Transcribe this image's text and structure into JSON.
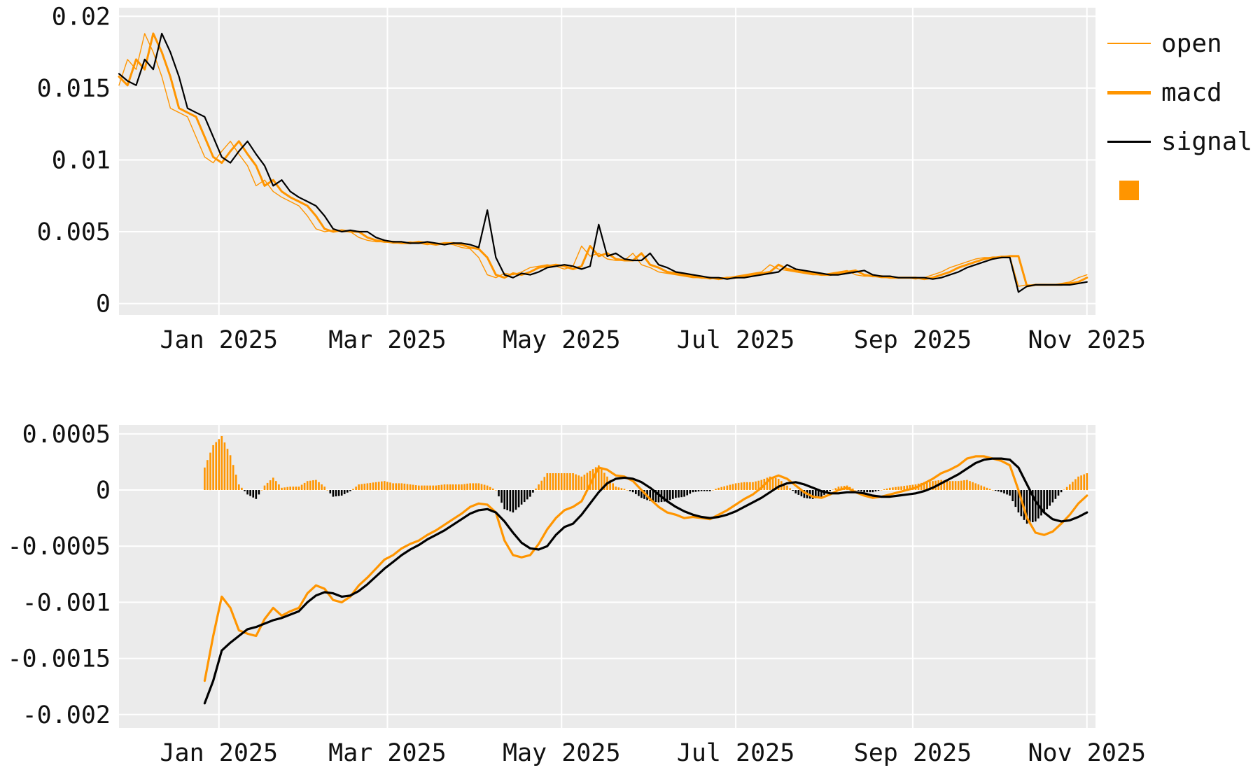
{
  "style": {
    "figure_bg": "#ffffff",
    "axes_bg": "#ebebeb",
    "grid_color": "#ffffff",
    "tick_label_color": "#111111",
    "accent_orange": "#ff9500",
    "line_black": "#000000"
  },
  "legend": {
    "entries": [
      {
        "label": "open",
        "type": "line",
        "color": "#ff9500",
        "weight": "thin"
      },
      {
        "label": "macd",
        "type": "line",
        "color": "#ff9500",
        "weight": "thick"
      },
      {
        "label": "signal",
        "type": "line",
        "color": "#000000",
        "weight": "medium"
      },
      {
        "label": "",
        "type": "square",
        "color": "#ff9500"
      }
    ]
  },
  "chart_data": [
    {
      "type": "line",
      "title": "",
      "xlabel": "",
      "ylabel": "",
      "grid": true,
      "x_domain": [
        0,
        342
      ],
      "step_days": 3,
      "x_ticks": [
        35,
        94,
        155,
        216,
        278,
        339
      ],
      "x_tick_labels": [
        "Jan 2025",
        "Mar 2025",
        "May 2025",
        "Jul 2025",
        "Sep 2025",
        "Nov 2025"
      ],
      "ylim": [
        -0.0008,
        0.0206
      ],
      "y_ticks": [
        0,
        0.005,
        0.01,
        0.015,
        0.02
      ],
      "y_tick_labels": [
        "0",
        "0.005",
        "0.01",
        "0.015",
        "0.02"
      ],
      "series": [
        {
          "name": "open",
          "color": "#ff9500",
          "width": 1.4,
          "values": [
            0.0152,
            0.017,
            0.0163,
            0.0188,
            0.0175,
            0.0158,
            0.0136,
            0.0133,
            0.013,
            0.0116,
            0.0102,
            0.0098,
            0.0106,
            0.0113,
            0.0104,
            0.0096,
            0.0082,
            0.0086,
            0.0078,
            0.0074,
            0.0071,
            0.0068,
            0.0061,
            0.0052,
            0.005,
            0.0051,
            0.005,
            0.005,
            0.0046,
            0.0044,
            0.0043,
            0.0043,
            0.0042,
            0.0042,
            0.0043,
            0.0042,
            0.0041,
            0.0042,
            0.0042,
            0.0041,
            0.0039,
            0.0038,
            0.0032,
            0.002,
            0.0018,
            0.0021,
            0.002,
            0.0022,
            0.0025,
            0.0026,
            0.0027,
            0.0026,
            0.0024,
            0.0026,
            0.004,
            0.0033,
            0.0035,
            0.0031,
            0.003,
            0.003,
            0.0035,
            0.0027,
            0.0025,
            0.0022,
            0.0021,
            0.002,
            0.0019,
            0.0018,
            0.0018,
            0.0017,
            0.0018,
            0.0018,
            0.0019,
            0.002,
            0.0021,
            0.0022,
            0.0027,
            0.0024,
            0.0023,
            0.0022,
            0.0021,
            0.002,
            0.002,
            0.0021,
            0.0022,
            0.0023,
            0.002,
            0.0019,
            0.0019,
            0.0018,
            0.0018,
            0.0018,
            0.0018,
            0.0017,
            0.0018,
            0.002,
            0.0022,
            0.0025,
            0.0027,
            0.0029,
            0.0031,
            0.0032,
            0.0032,
            0.0033,
            0.0033,
            0.0012,
            0.0013,
            0.0013,
            0.0013,
            0.0013,
            0.0014,
            0.0015,
            0.0018,
            0.002
          ]
        },
        {
          "name": "macd",
          "color": "#ff9500",
          "width": 3.0,
          "values": [
            0.0158,
            0.0152,
            0.017,
            0.0163,
            0.0188,
            0.0175,
            0.0158,
            0.0136,
            0.0133,
            0.013,
            0.0116,
            0.0102,
            0.0098,
            0.0106,
            0.0113,
            0.0104,
            0.0096,
            0.0082,
            0.0086,
            0.0078,
            0.0074,
            0.0071,
            0.0068,
            0.0061,
            0.0052,
            0.005,
            0.0051,
            0.005,
            0.005,
            0.0046,
            0.0044,
            0.0043,
            0.0043,
            0.0042,
            0.0042,
            0.0043,
            0.0042,
            0.0041,
            0.0042,
            0.0042,
            0.0041,
            0.0039,
            0.0038,
            0.0032,
            0.002,
            0.0018,
            0.0021,
            0.002,
            0.0022,
            0.0025,
            0.0026,
            0.0027,
            0.0026,
            0.0024,
            0.0026,
            0.004,
            0.0033,
            0.0035,
            0.0031,
            0.003,
            0.003,
            0.0035,
            0.0027,
            0.0025,
            0.0022,
            0.0021,
            0.002,
            0.0019,
            0.0018,
            0.0018,
            0.0017,
            0.0018,
            0.0018,
            0.0019,
            0.002,
            0.0021,
            0.0022,
            0.0027,
            0.0024,
            0.0023,
            0.0022,
            0.0021,
            0.002,
            0.002,
            0.0021,
            0.0022,
            0.0023,
            0.002,
            0.0019,
            0.0019,
            0.0018,
            0.0018,
            0.0018,
            0.0018,
            0.0017,
            0.0018,
            0.002,
            0.0022,
            0.0025,
            0.0027,
            0.0029,
            0.0031,
            0.0032,
            0.0032,
            0.0033,
            0.0033,
            0.0012,
            0.0013,
            0.0013,
            0.0013,
            0.0013,
            0.0014,
            0.0015,
            0.0018
          ]
        },
        {
          "name": "signal",
          "color": "#000000",
          "width": 2.2,
          "values": [
            0.016,
            0.0155,
            0.0152,
            0.017,
            0.0163,
            0.0188,
            0.0175,
            0.0158,
            0.0136,
            0.0133,
            0.013,
            0.0116,
            0.0102,
            0.0098,
            0.0106,
            0.0113,
            0.0104,
            0.0096,
            0.0082,
            0.0086,
            0.0078,
            0.0074,
            0.0071,
            0.0068,
            0.0061,
            0.0052,
            0.005,
            0.0051,
            0.005,
            0.005,
            0.0046,
            0.0044,
            0.0043,
            0.0043,
            0.0042,
            0.0042,
            0.0043,
            0.0042,
            0.0041,
            0.0042,
            0.0042,
            0.0041,
            0.0039,
            0.0065,
            0.0032,
            0.002,
            0.0018,
            0.0021,
            0.002,
            0.0022,
            0.0025,
            0.0026,
            0.0027,
            0.0026,
            0.0024,
            0.0026,
            0.0055,
            0.0033,
            0.0035,
            0.0031,
            0.003,
            0.003,
            0.0035,
            0.0027,
            0.0025,
            0.0022,
            0.0021,
            0.002,
            0.0019,
            0.0018,
            0.0018,
            0.0017,
            0.0018,
            0.0018,
            0.0019,
            0.002,
            0.0021,
            0.0022,
            0.0027,
            0.0024,
            0.0023,
            0.0022,
            0.0021,
            0.002,
            0.002,
            0.0021,
            0.0022,
            0.0023,
            0.002,
            0.0019,
            0.0019,
            0.0018,
            0.0018,
            0.0018,
            0.0018,
            0.0017,
            0.0018,
            0.002,
            0.0022,
            0.0025,
            0.0027,
            0.0029,
            0.0031,
            0.0032,
            0.0032,
            0.0008,
            0.0012,
            0.0013,
            0.0013,
            0.0013,
            0.0013,
            0.0013,
            0.0014,
            0.0015
          ]
        }
      ]
    },
    {
      "type": "line+bar",
      "title": "",
      "xlabel": "",
      "ylabel": "",
      "grid": true,
      "x_domain": [
        0,
        342
      ],
      "step_days": 3,
      "x_ticks": [
        35,
        94,
        155,
        216,
        278,
        339
      ],
      "x_tick_labels": [
        "Jan 2025",
        "Mar 2025",
        "May 2025",
        "Jul 2025",
        "Sep 2025",
        "Nov 2025"
      ],
      "ylim": [
        -0.00212,
        0.00058
      ],
      "y_ticks": [
        0.0005,
        0,
        -0.0005,
        -0.001,
        -0.0015,
        -0.002
      ],
      "y_tick_labels": [
        "0.0005",
        "0",
        "-0.0005",
        "-0.001",
        "-0.0015",
        "-0.002"
      ],
      "histogram": {
        "derived_from": "macd - signal",
        "bar_resolution_days": 1,
        "positive_color": "#ff9500",
        "negative_color": "#000000"
      },
      "series": [
        {
          "name": "macd",
          "color": "#ff9500",
          "width": 3.2,
          "values": [
            null,
            null,
            null,
            null,
            null,
            null,
            null,
            null,
            null,
            null,
            -0.0017,
            -0.0013,
            -0.00095,
            -0.00105,
            -0.00125,
            -0.00128,
            -0.0013,
            -0.00115,
            -0.00105,
            -0.00112,
            -0.00108,
            -0.00105,
            -0.00092,
            -0.00085,
            -0.00088,
            -0.00098,
            -0.001,
            -0.00095,
            -0.00085,
            -0.00078,
            -0.0007,
            -0.00062,
            -0.00058,
            -0.00052,
            -0.00048,
            -0.00045,
            -0.0004,
            -0.00036,
            -0.00031,
            -0.00026,
            -0.00021,
            -0.00015,
            -0.00012,
            -0.00013,
            -0.0002,
            -0.00045,
            -0.00058,
            -0.0006,
            -0.00058,
            -0.00048,
            -0.00035,
            -0.00025,
            -0.00018,
            -0.00015,
            -0.0001,
            5e-05,
            0.0002,
            0.00018,
            0.00013,
            0.00012,
            8e-05,
            0,
            -8e-05,
            -0.00015,
            -0.0002,
            -0.00022,
            -0.00025,
            -0.00024,
            -0.00025,
            -0.00026,
            -0.00022,
            -0.00018,
            -0.00013,
            -8e-05,
            -4e-05,
            2e-05,
            0.0001,
            0.00013,
            0.0001,
            4e-05,
            -2e-05,
            -6e-05,
            -7e-05,
            -4e-05,
            0,
            2e-05,
            -2e-05,
            -5e-05,
            -7e-05,
            -6e-05,
            -4e-05,
            -2e-05,
            0,
            2e-05,
            6e-05,
            0.0001,
            0.00015,
            0.00018,
            0.00022,
            0.00028,
            0.0003,
            0.0003,
            0.00028,
            0.00026,
            0.00022,
            0,
            -0.00025,
            -0.00038,
            -0.0004,
            -0.00037,
            -0.0003,
            -0.00022,
            -0.00012,
            -5e-05
          ]
        },
        {
          "name": "signal",
          "color": "#000000",
          "width": 3.2,
          "values": [
            null,
            null,
            null,
            null,
            null,
            null,
            null,
            null,
            null,
            null,
            -0.0019,
            -0.0017,
            -0.00143,
            -0.00136,
            -0.0013,
            -0.00124,
            -0.00122,
            -0.00119,
            -0.00116,
            -0.00114,
            -0.00111,
            -0.00108,
            -0.001,
            -0.00094,
            -0.00091,
            -0.00092,
            -0.00095,
            -0.00094,
            -0.0009,
            -0.00084,
            -0.00077,
            -0.0007,
            -0.00064,
            -0.00058,
            -0.00053,
            -0.00049,
            -0.00044,
            -0.0004,
            -0.00036,
            -0.00031,
            -0.00026,
            -0.00021,
            -0.00018,
            -0.00017,
            -0.0002,
            -0.00028,
            -0.00038,
            -0.00047,
            -0.00052,
            -0.00053,
            -0.0005,
            -0.0004,
            -0.00033,
            -0.0003,
            -0.00022,
            -0.00012,
            -2e-05,
            6e-05,
            0.0001,
            0.00011,
            0.0001,
            7e-05,
            2e-05,
            -4e-05,
            -0.0001,
            -0.00015,
            -0.00019,
            -0.00022,
            -0.00024,
            -0.00025,
            -0.00024,
            -0.00022,
            -0.00019,
            -0.00015,
            -0.00011,
            -7e-05,
            -2e-05,
            3e-05,
            6e-05,
            7e-05,
            5e-05,
            2e-05,
            -1e-05,
            -3e-05,
            -3e-05,
            -2e-05,
            -2e-05,
            -3e-05,
            -5e-05,
            -6e-05,
            -6e-05,
            -5e-05,
            -4e-05,
            -3e-05,
            -1e-05,
            2e-05,
            6e-05,
            0.0001,
            0.00014,
            0.00019,
            0.00024,
            0.00027,
            0.00028,
            0.00028,
            0.00027,
            0.0002,
            5e-05,
            -0.0001,
            -0.0002,
            -0.00026,
            -0.00028,
            -0.00027,
            -0.00024,
            -0.0002
          ]
        }
      ]
    }
  ]
}
